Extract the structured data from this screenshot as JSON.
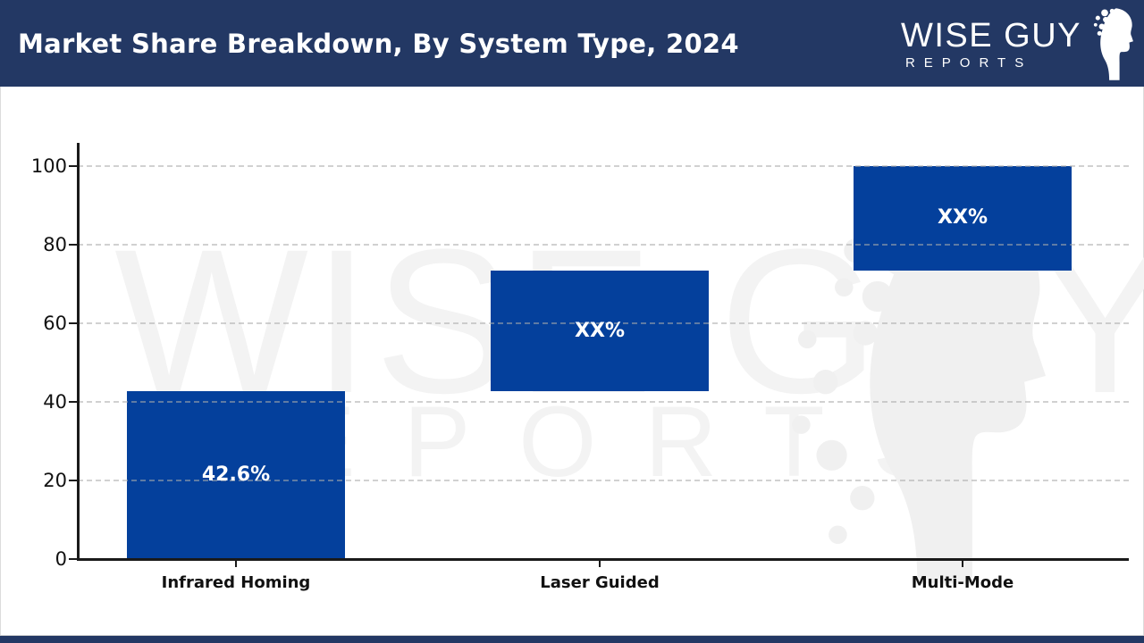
{
  "header": {
    "title": "Market Share Breakdown, By System Type, 2024",
    "logo": {
      "line1": "WISE GUY",
      "line2": "REPORTS"
    }
  },
  "watermark": {
    "line1": "WISE GUY",
    "line2": "REPORTS"
  },
  "chart_data": {
    "type": "bar",
    "subtype": "waterfall",
    "title": "Market Share Breakdown, By System Type, 2024",
    "categories": [
      "Infrared Homing",
      "Laser Guided",
      "Multi-Mode"
    ],
    "segments": [
      {
        "category": "Infrared Homing",
        "start": 0,
        "end": 42.6,
        "label": "42.6%"
      },
      {
        "category": "Laser Guided",
        "start": 42.6,
        "end": 73.2,
        "label": "XX%"
      },
      {
        "category": "Multi-Mode",
        "start": 73.2,
        "end": 100,
        "label": "XX%"
      }
    ],
    "xlabel": "",
    "ylabel": "",
    "ylim": [
      0,
      100
    ],
    "yticks": [
      0,
      20,
      40,
      60,
      80,
      100
    ],
    "grid": "horizontal-dashed-over-bars",
    "legend": "none",
    "bar_color": "#04409c"
  },
  "colors": {
    "header_bg": "#233864",
    "footer_bg": "#233864",
    "bar": "#04409c",
    "bar_label_text": "#ffffff",
    "axis": "#1a1a1a",
    "gridline": "#c9c9c9",
    "watermark": "#f3f3f3"
  }
}
